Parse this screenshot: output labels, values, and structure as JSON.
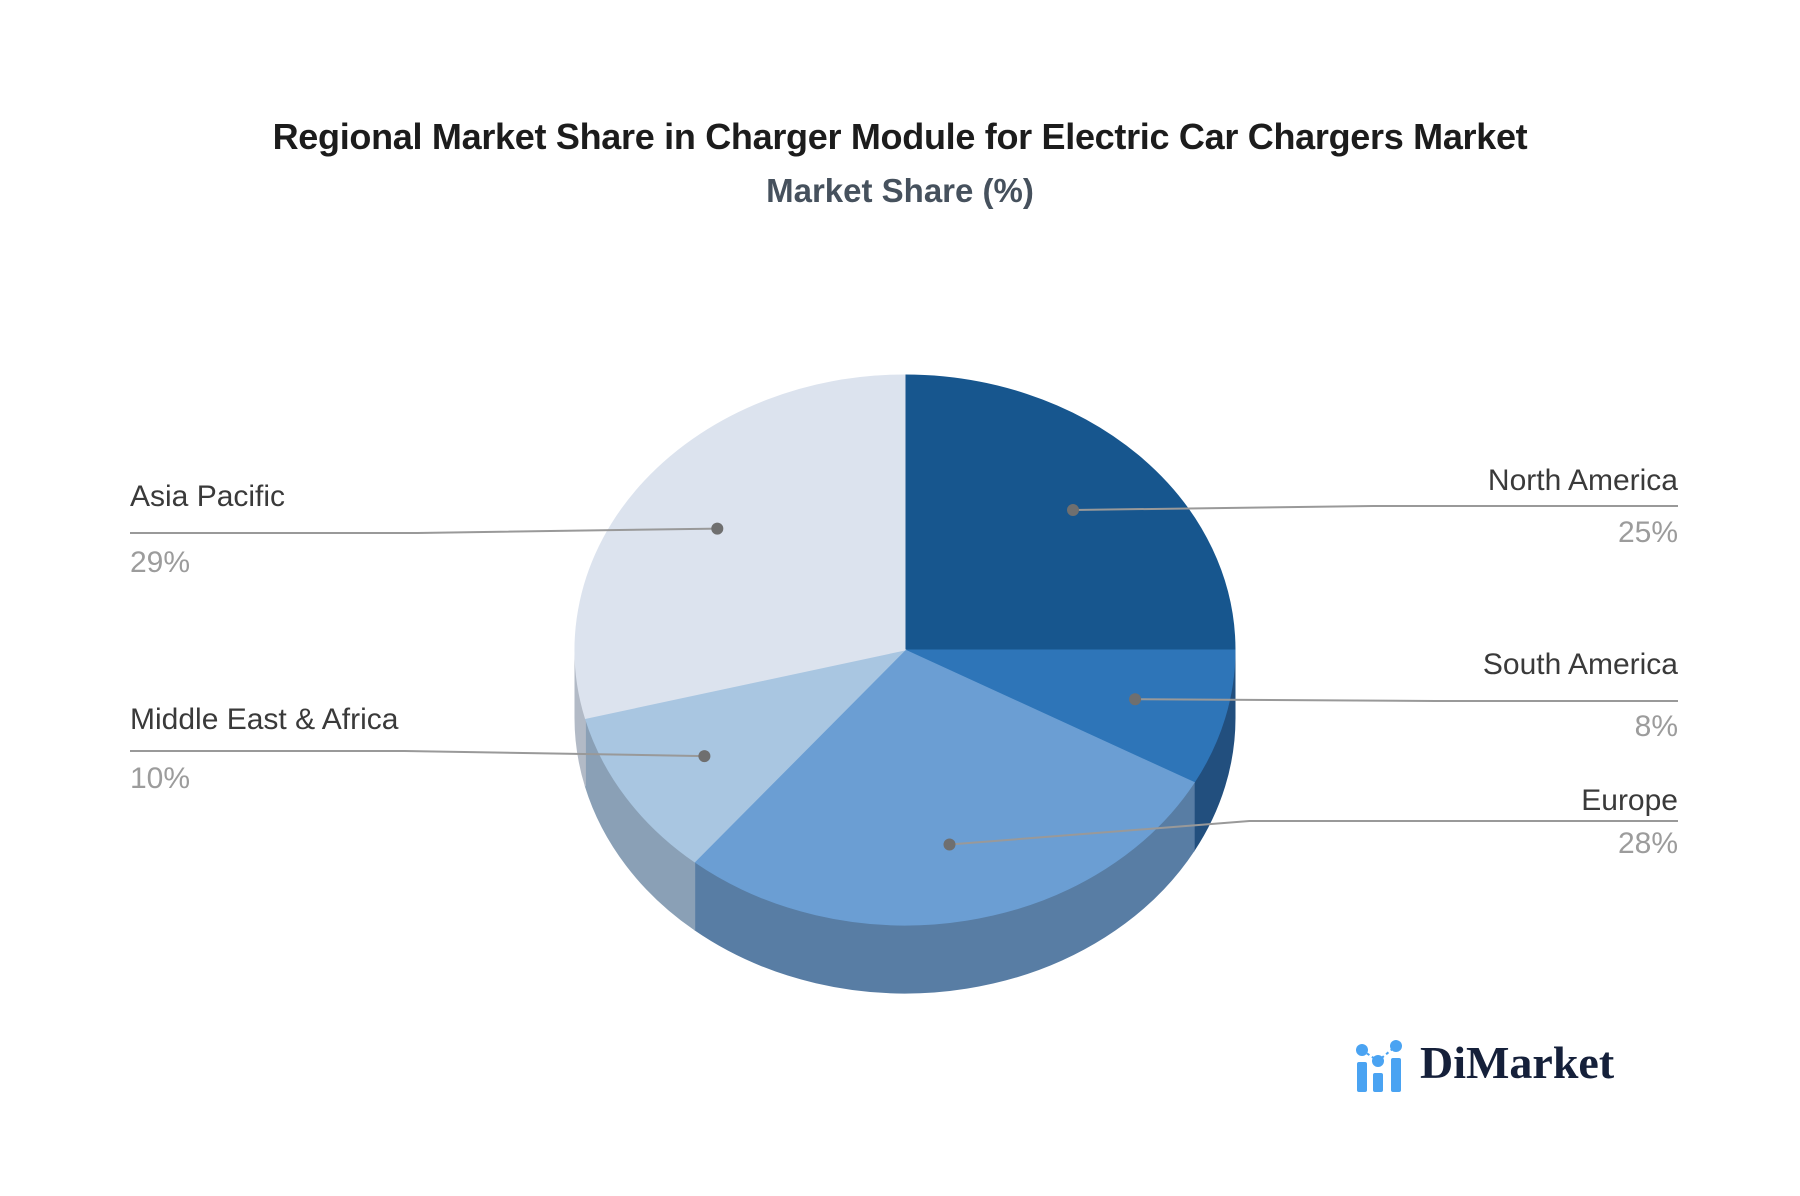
{
  "title": "Regional Market Share in Charger Module for Electric Car Chargers Market",
  "subtitle": "Market Share (%)",
  "logo": {
    "text": "DiMarket"
  },
  "labels": {
    "na": {
      "name": "North America",
      "pct": "25%"
    },
    "sa": {
      "name": "South America",
      "pct": "8%"
    },
    "eu": {
      "name": "Europe",
      "pct": "28%"
    },
    "mea": {
      "name": "Middle East & Africa",
      "pct": "10%"
    },
    "ap": {
      "name": "Asia Pacific",
      "pct": "29%"
    }
  },
  "chart_data": {
    "type": "pie",
    "title": "Regional Market Share in Charger Module for Electric Car Chargers Market",
    "subtitle": "Market Share (%)",
    "effect": "3d",
    "start_angle_deg": 0,
    "direction": "clockwise",
    "legend_position": "connector-labels",
    "slices": [
      {
        "key": "na",
        "label": "North America",
        "value": 25,
        "color": "#17568e",
        "side_color": "#1d4977"
      },
      {
        "key": "sa",
        "label": "South America",
        "value": 8,
        "color": "#2e75b8",
        "side_color": "#224f7e"
      },
      {
        "key": "eu",
        "label": "Europe",
        "value": 28,
        "color": "#6b9ed3",
        "side_color": "#587da4"
      },
      {
        "key": "mea",
        "label": "Middle East & Africa",
        "value": 10,
        "color": "#a9c6e1",
        "side_color": "#8aa0b6"
      },
      {
        "key": "ap",
        "label": "Asia Pacific",
        "value": 29,
        "color": "#dce3ee",
        "side_color": "#b2bac6"
      }
    ],
    "connector_color": "#999999",
    "connector_dot_color": "#6f6f6f"
  }
}
